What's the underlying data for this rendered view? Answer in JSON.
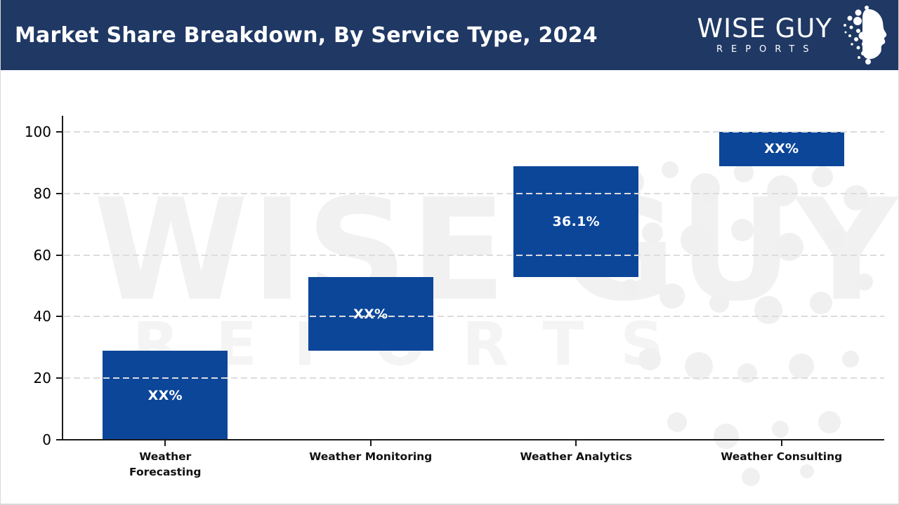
{
  "header": {
    "title": "Market Share Breakdown, By Service Type, 2024",
    "background": "#1f3864",
    "logo": {
      "line1": "WISE GUY",
      "line2": "REPORTS",
      "face_icon": "dotted-head-profile"
    }
  },
  "watermark": {
    "line1": "WISE GUY",
    "line2": "REPORTS"
  },
  "chart_data": {
    "type": "bar",
    "variant": "waterfall",
    "title": "Market Share Breakdown, By Service Type, 2024",
    "categories": [
      "Weather\nForecasting",
      "Weather Monitoring",
      "Weather Analytics",
      "Weather Consulting"
    ],
    "segments": [
      {
        "category": "Weather Forecasting",
        "start": 0,
        "end": 28.9,
        "label": "XX%"
      },
      {
        "category": "Weather Monitoring",
        "start": 28.9,
        "end": 52.8,
        "label": "XX%"
      },
      {
        "category": "Weather Analytics",
        "start": 52.8,
        "end": 88.9,
        "label": "36.1%"
      },
      {
        "category": "Weather Consulting",
        "start": 88.9,
        "end": 100,
        "label": "XX%"
      }
    ],
    "yticks": [
      0,
      20,
      40,
      60,
      80,
      100
    ],
    "ylim": [
      0,
      105.5
    ],
    "xlabel": "",
    "ylabel": "",
    "bar_color": "#0c4699",
    "bar_label_color": "#ffffff",
    "grid": {
      "axis": "y",
      "style": "dashed",
      "color": "#dcdcdc",
      "above_bars": true
    },
    "legend": "none"
  }
}
